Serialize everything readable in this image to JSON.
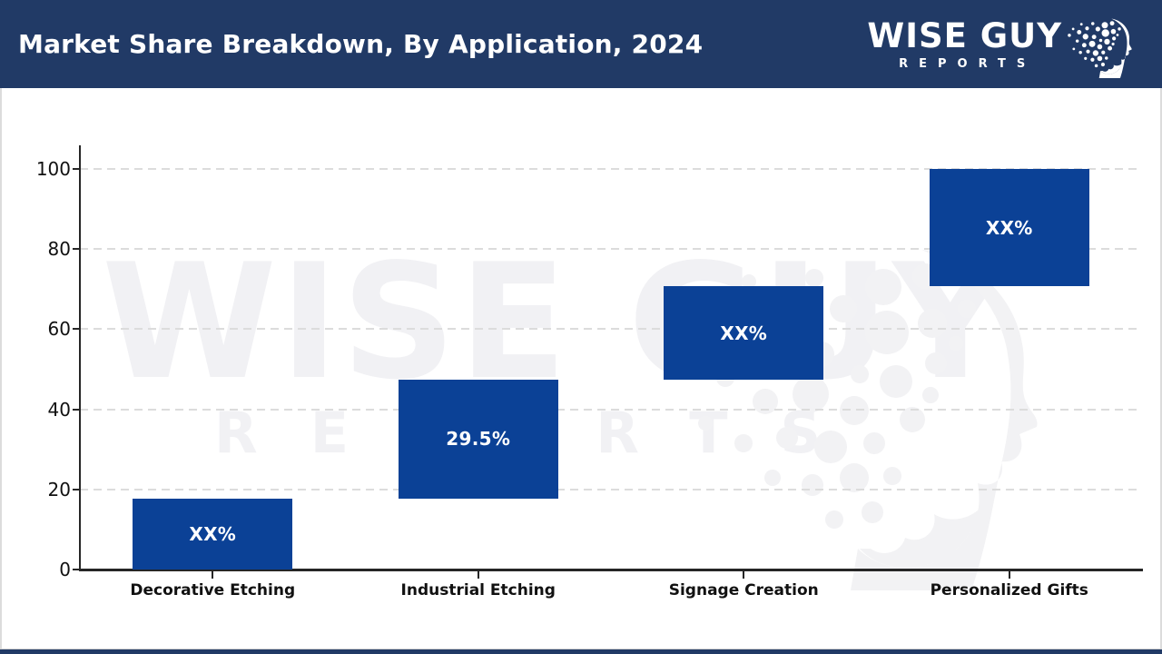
{
  "header": {
    "title": "Market Share Breakdown, By Application, 2024",
    "bg_color": "#213a66",
    "logo": {
      "line1": "WISE GUY",
      "line2": "REPORTS"
    }
  },
  "watermark": {
    "line1": "WISE GUY",
    "line2": "REPORTS"
  },
  "chart_data": {
    "type": "bar",
    "variant": "floating-segment-breakdown",
    "title": "Market Share Breakdown, By Application, 2024",
    "categories": [
      "Decorative Etching",
      "Industrial Etching",
      "Signage Creation",
      "Personalized Gifts"
    ],
    "segments": [
      {
        "category": "Decorative Etching",
        "start": 0,
        "end": 17.8,
        "label": "XX%"
      },
      {
        "category": "Industrial Etching",
        "start": 17.8,
        "end": 47.3,
        "label": "29.5%"
      },
      {
        "category": "Signage Creation",
        "start": 47.3,
        "end": 70.7,
        "label": "XX%"
      },
      {
        "category": "Personalized Gifts",
        "start": 70.7,
        "end": 100,
        "label": "XX%"
      }
    ],
    "ylim": [
      0,
      100
    ],
    "yticks": [
      0,
      20,
      40,
      60,
      80,
      100
    ],
    "grid": "horizontal-dashed",
    "legend": "none",
    "bar_color": "#0b4196",
    "bar_label_color": "#ffffff",
    "axis_color": "#262626",
    "grid_color": "#dcdcdc"
  }
}
